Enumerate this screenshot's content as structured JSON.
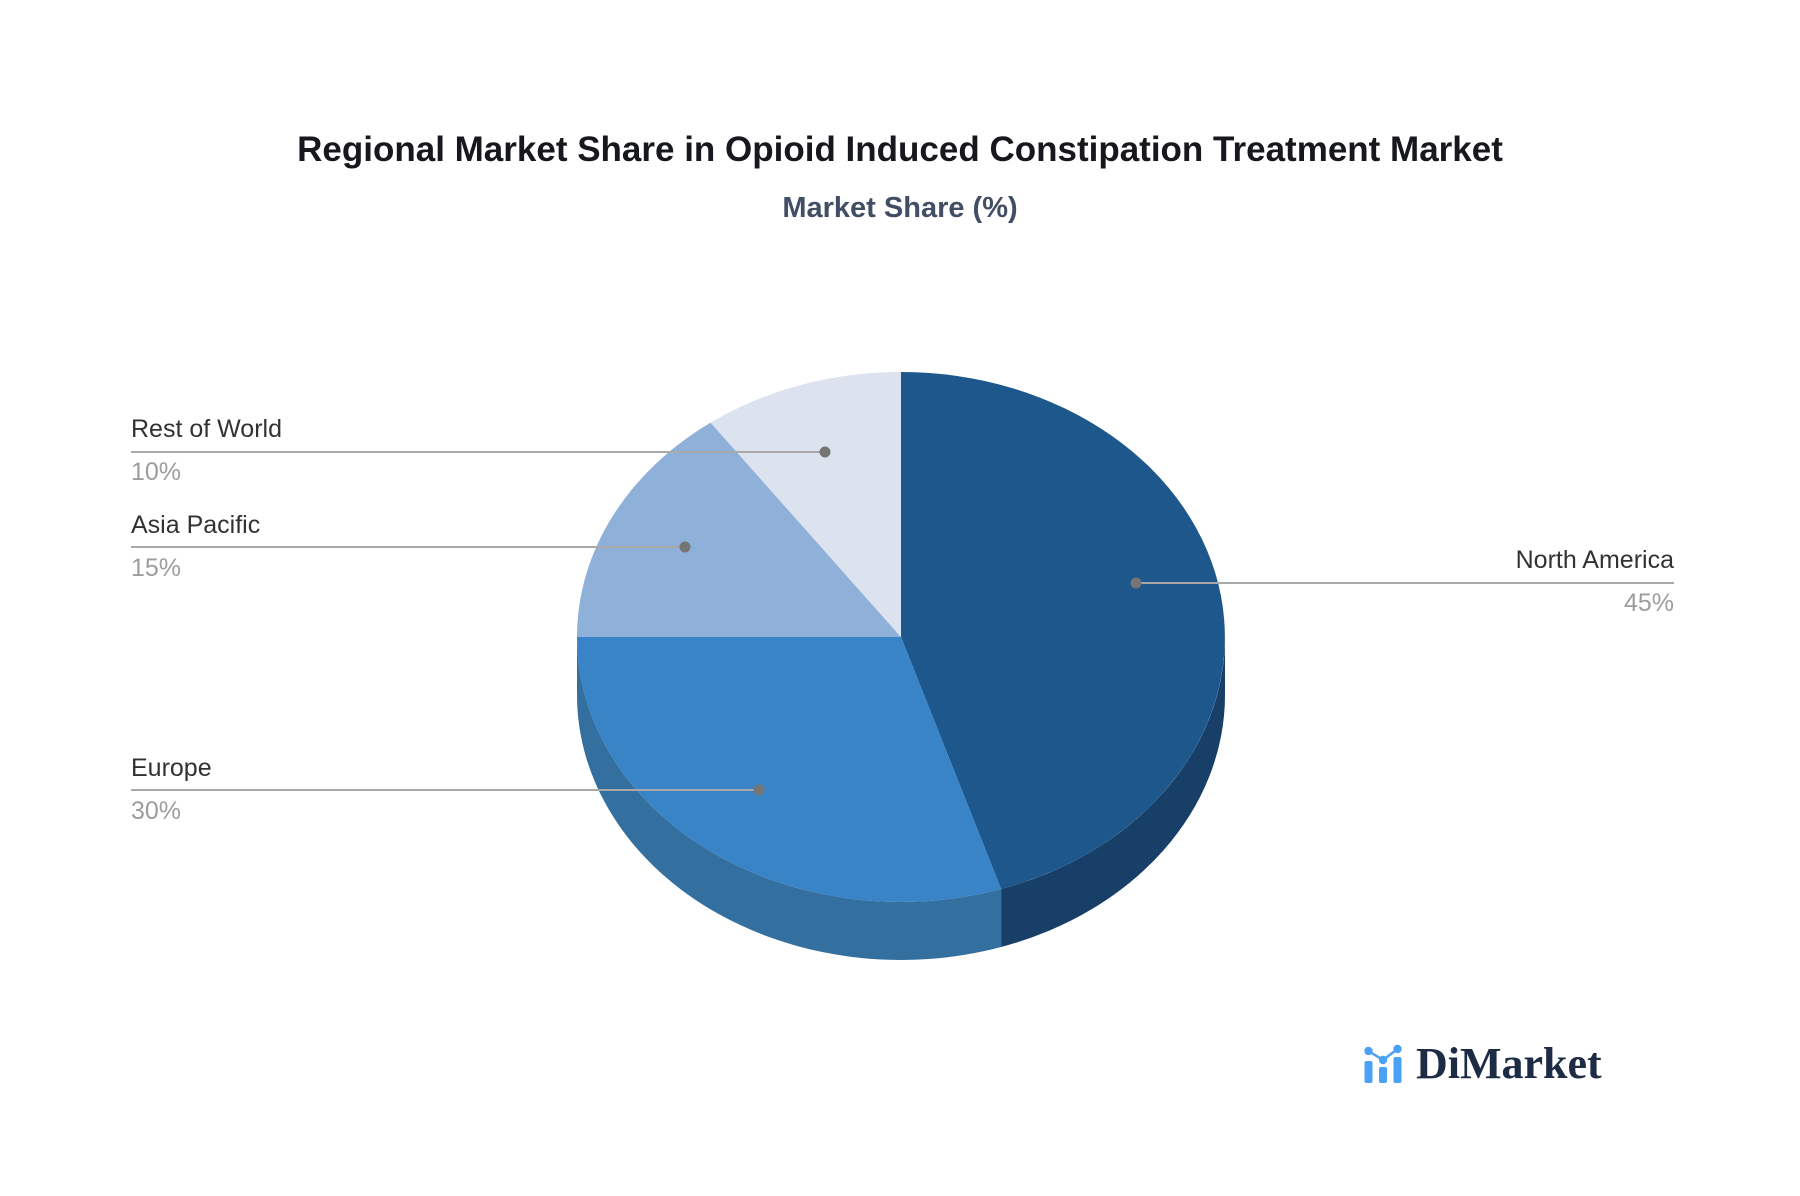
{
  "chart_data": {
    "type": "pie",
    "effect": "3d",
    "title": "Regional Market Share in Opioid Induced Constipation Treatment Market",
    "subtitle": "Market Share (%)",
    "unit": "%",
    "direction": "clockwise",
    "start_angle_deg": 0,
    "legend": "none",
    "slices": [
      {
        "label": "North America",
        "value": 45,
        "pct_label": "45%",
        "color": "#1d578c",
        "side_color": "#173f68"
      },
      {
        "label": "Europe",
        "value": 30,
        "pct_label": "30%",
        "color": "#3884c7",
        "side_color": "#336f9f"
      },
      {
        "label": "Asia Pacific",
        "value": 15,
        "pct_label": "15%",
        "color": "#8fb0d8",
        "side_color": "#7394bf"
      },
      {
        "label": "Rest of World",
        "value": 10,
        "pct_label": "10%",
        "color": "#dce3ef",
        "side_color": "#b9c4d8"
      }
    ],
    "colors": {
      "label_text": "#323232",
      "pct_text": "#9d9d9d",
      "leader_line": "#a9a9a9",
      "leader_dot": "#757575"
    }
  },
  "footer": {
    "brand": "DiMarket",
    "brand_icon": "bar-line-chart-icon",
    "brand_text_color": "#1d2b45",
    "brand_icon_color": "#4aa1f5"
  }
}
